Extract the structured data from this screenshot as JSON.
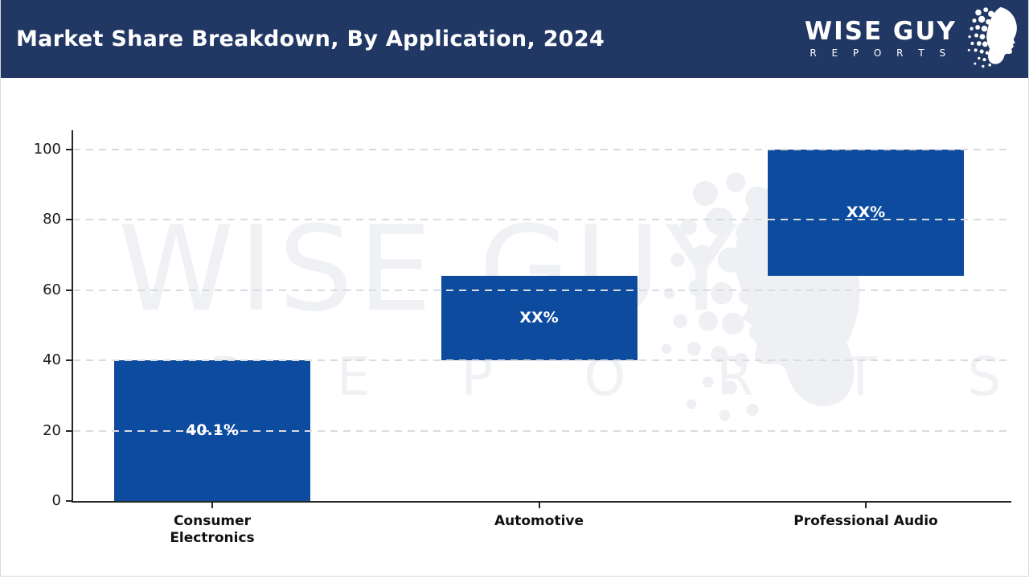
{
  "header": {
    "title": "Market Share Breakdown, By Application, 2024",
    "logo": {
      "line1": "WISE GUY",
      "line2": "R E P O R T S"
    }
  },
  "watermark": {
    "line1": "WISE GUY",
    "line2": "R E P O R T S"
  },
  "chart_data": {
    "type": "bar",
    "subtype": "floating-range segment bars (waterfall-style market share breakdown)",
    "title": "Market Share Breakdown, By Application, 2024",
    "categories": [
      "Consumer Electronics",
      "Automotive",
      "Professional Audio"
    ],
    "bars": [
      {
        "category": "Consumer Electronics",
        "category_lines": [
          "Consumer",
          "Electronics"
        ],
        "from": 0,
        "to": 40.1,
        "size": 40.1,
        "label": "40.1%"
      },
      {
        "category": "Automotive",
        "category_lines": [
          "Automotive"
        ],
        "from": 40.1,
        "to": 64.1,
        "size": 24.0,
        "label": "XX%"
      },
      {
        "category": "Professional Audio",
        "category_lines": [
          "Professional Audio"
        ],
        "from": 64.1,
        "to": 100,
        "size": 35.9,
        "label": "XX%"
      }
    ],
    "yticks": [
      0,
      20,
      40,
      60,
      80,
      100
    ],
    "ylim": [
      0,
      106
    ],
    "grid": "horizontal dashed, drawn above bars",
    "legend": null,
    "xlabel": "",
    "ylabel": "",
    "bar_color": "#0d4b9e",
    "axis_color": "#262626",
    "grid_color": "#d9dbde",
    "value_label_color": "#ffffff"
  },
  "colors": {
    "header_bg": "#223864",
    "page_bg": "#ffffff",
    "watermark": "#f0f1f4",
    "frame_border": "#d9d9d9"
  }
}
